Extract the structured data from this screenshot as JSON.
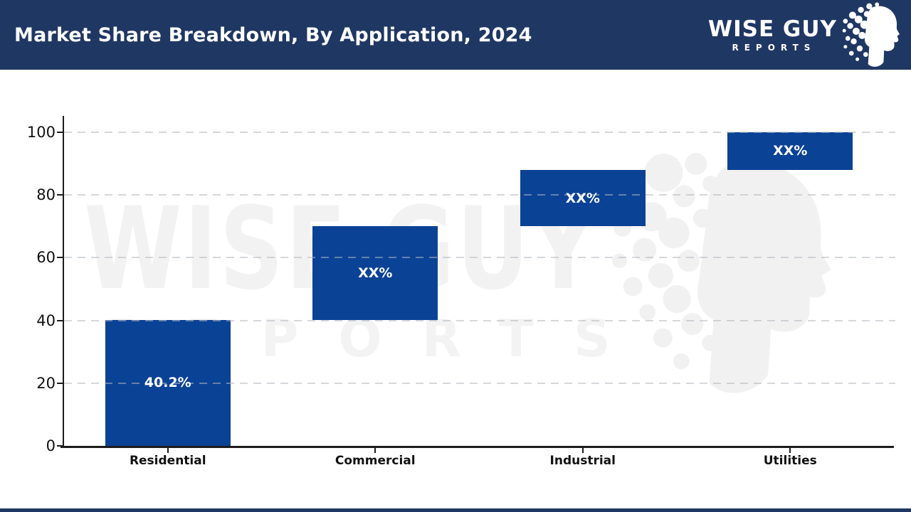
{
  "header": {
    "title": "Market Share Breakdown, By Application, 2024",
    "logo": {
      "line1": "WISE GUY",
      "line2": "REPORTS",
      "head_icon": "dotted-head-profile"
    }
  },
  "watermark": {
    "line1": "WISE GUY",
    "line2": "REPORTS",
    "head_icon": "dotted-head-profile"
  },
  "chart_data": {
    "type": "bar",
    "subtype": "waterfall",
    "title": "Market Share Breakdown, By Application, 2024",
    "categories": [
      "Residential",
      "Commercial",
      "Industrial",
      "Utilities"
    ],
    "segments": [
      {
        "category": "Residential",
        "start": 0,
        "end": 40.2,
        "label": "40.2%"
      },
      {
        "category": "Commercial",
        "start": 40.2,
        "end": 70,
        "label": "XX%"
      },
      {
        "category": "Industrial",
        "start": 70,
        "end": 88,
        "label": "XX%"
      },
      {
        "category": "Utilities",
        "start": 88,
        "end": 100,
        "label": "XX%"
      }
    ],
    "xlabel": "",
    "ylabel": "",
    "ylim": [
      0,
      100
    ],
    "yticks": [
      0,
      20,
      40,
      60,
      80,
      100
    ],
    "grid": {
      "axis": "y",
      "style": "dashed",
      "above_bars": true
    },
    "legend": "none",
    "bar_color": "#0a4296",
    "bar_label_color": "#ffffff",
    "axis_color": "#1c1c1c"
  },
  "colors": {
    "header_bg": "#1f3763",
    "footer_bg": "#1f3763",
    "bar": "#0a4296",
    "watermark": "#f2f2f2"
  }
}
